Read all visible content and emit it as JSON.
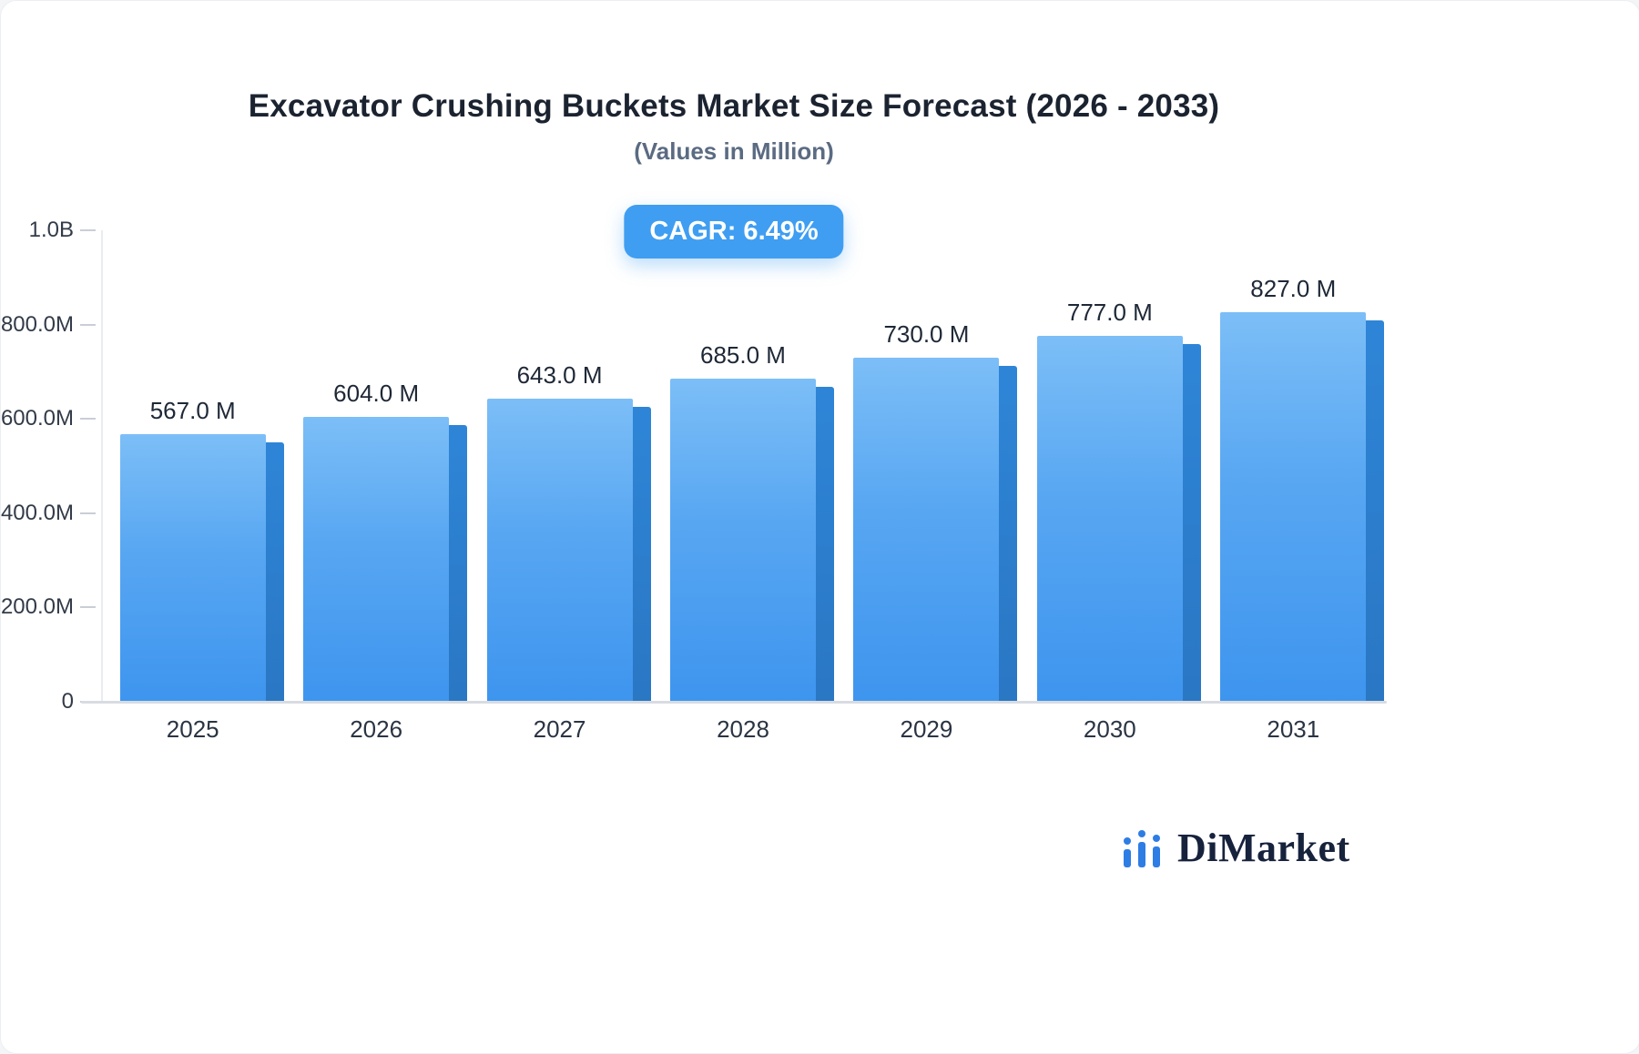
{
  "title": "Excavator Crushing Buckets Market Size Forecast (2026 - 2033)",
  "subtitle": "(Values in Million)",
  "badge": {
    "label": "CAGR: 6.49%",
    "color": "#3f9ef2"
  },
  "chart_data": {
    "type": "bar",
    "title": "Excavator Crushing Buckets Market Size Forecast (2026 - 2033)",
    "subtitle": "(Values in Million)",
    "categories": [
      "2025",
      "2026",
      "2027",
      "2028",
      "2029",
      "2030",
      "2031"
    ],
    "values": [
      567,
      604,
      643,
      685,
      730,
      777,
      827
    ],
    "value_labels": [
      "567.0 M",
      "604.0 M",
      "643.0 M",
      "685.0 M",
      "730.0 M",
      "777.0 M",
      "827.0 M"
    ],
    "unit": "Million",
    "ylim": [
      0,
      1000
    ],
    "yticks": [
      {
        "value": 1000,
        "label": "1.0B"
      },
      {
        "value": 800,
        "label": "800.0M"
      },
      {
        "value": 600,
        "label": "600.0M"
      },
      {
        "value": 400,
        "label": "400.0M"
      },
      {
        "value": 200,
        "label": "200.0M"
      },
      {
        "value": 0,
        "label": "0"
      }
    ],
    "grid": false,
    "legend": "none",
    "bar_color_front_top": "#7cbef7",
    "bar_color_front_bottom": "#3e95ee",
    "bar_color_side": "#2a77c4",
    "annotations": [
      "CAGR: 6.49%"
    ]
  },
  "logo": {
    "text": "DiMarket",
    "icon": "bar-chart-icon",
    "color": "#2e7de5"
  }
}
